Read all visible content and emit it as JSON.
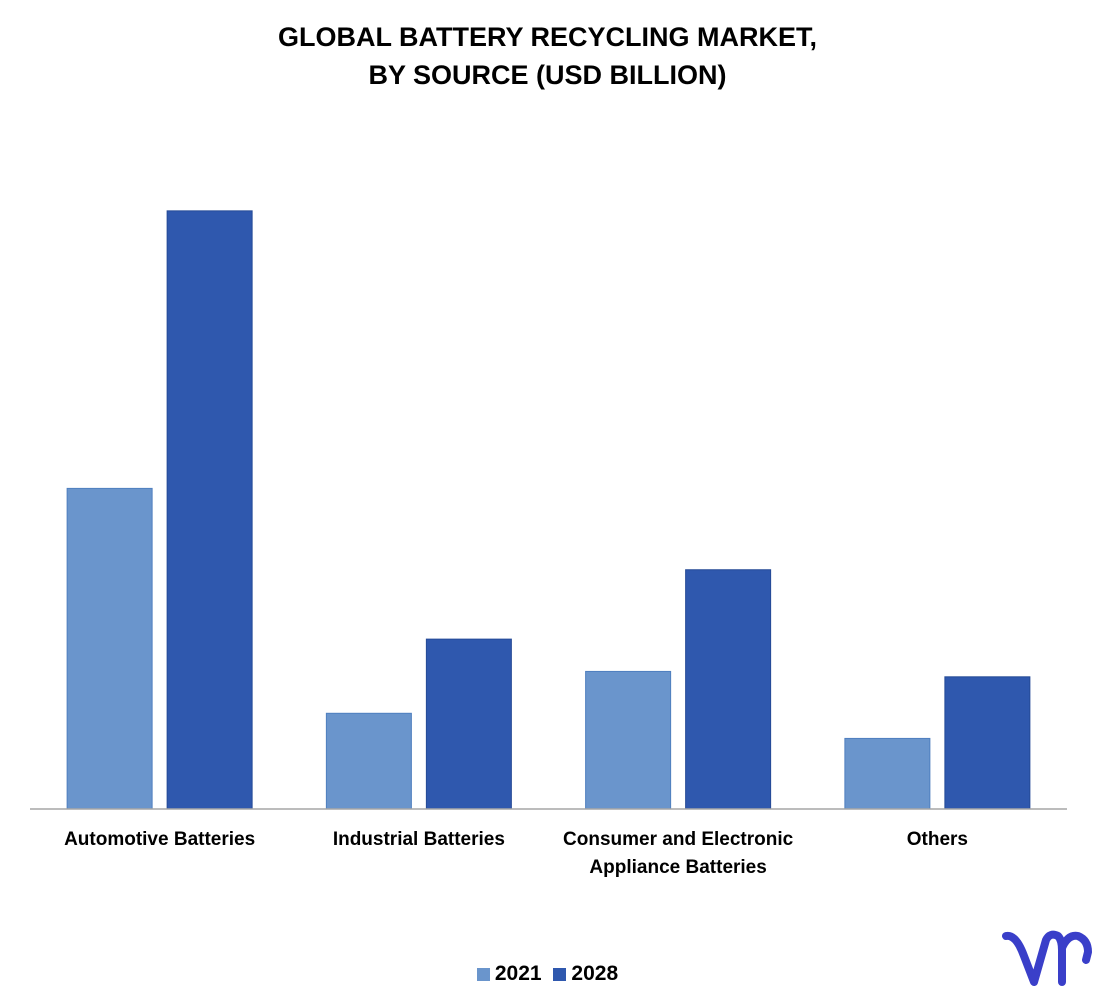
{
  "chart_data": {
    "type": "bar",
    "title": "GLOBAL BATTERY RECYCLING MARKET,\nBY SOURCE (USD BILLION)",
    "title_lines": [
      "GLOBAL BATTERY RECYCLING MARKET,",
      "BY SOURCE (USD BILLION)"
    ],
    "categories": [
      [
        "Automotive Batteries"
      ],
      [
        "Industrial Batteries"
      ],
      [
        "Consumer and Electronic",
        "Appliance Batteries"
      ],
      [
        "Others"
      ]
    ],
    "series": [
      {
        "name": "2021",
        "color": "#6a95cc",
        "values": [
          5.36,
          1.6,
          2.3,
          1.18
        ]
      },
      {
        "name": "2028",
        "color": "#2f58ae",
        "values": [
          10.0,
          2.84,
          4.0,
          2.21
        ]
      }
    ],
    "ylim": [
      0,
      10.8
    ],
    "y_axis_visible": false,
    "grid": false,
    "legend_position": "bottom"
  },
  "legend": {
    "items": [
      {
        "label": "2021",
        "color": "#6a95cc"
      },
      {
        "label": "2028",
        "color": "#2f58ae"
      }
    ]
  },
  "logo": {
    "icon": "vmr-logo-icon",
    "color": "#3a3fc9"
  }
}
